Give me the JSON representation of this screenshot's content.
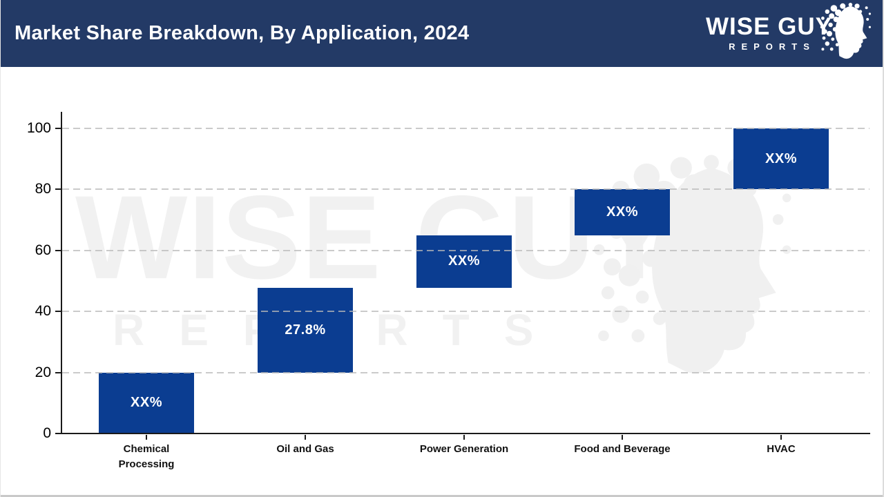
{
  "header": {
    "title": "Market Share Breakdown, By Application, 2024",
    "bg_color": "#233a66",
    "logo": {
      "line1": "WISE GUY",
      "line2": "REPORTS"
    }
  },
  "watermark": {
    "line1": "WISE GUY",
    "line2": "REPORTS"
  },
  "colors": {
    "bar": "#0b3d91",
    "header_bg": "#233a66",
    "gridline": "#bdbdbd",
    "watermark": "#f1f1f1"
  },
  "chart_data": {
    "type": "bar",
    "subtype": "floating-waterfall",
    "title": "Market Share Breakdown, By Application, 2024",
    "xlabel": "",
    "ylabel": "",
    "ylim": [
      0,
      105
    ],
    "yticks": [
      0,
      20,
      40,
      60,
      80,
      100
    ],
    "grid": "dashed-horizontal",
    "legend": "none",
    "bar_color": "#0b3d91",
    "categories": [
      {
        "name": "Chemical Processing",
        "lines": [
          "Chemical",
          "Processing"
        ],
        "start": 0,
        "end": 20,
        "label": "XX%"
      },
      {
        "name": "Oil and Gas",
        "lines": [
          "Oil and Gas"
        ],
        "start": 20,
        "end": 47.8,
        "label": "27.8%"
      },
      {
        "name": "Power Generation",
        "lines": [
          "Power Generation"
        ],
        "start": 47.8,
        "end": 65,
        "label": "XX%"
      },
      {
        "name": "Food and Beverage",
        "lines": [
          "Food and Beverage"
        ],
        "start": 65,
        "end": 80,
        "label": "XX%"
      },
      {
        "name": "HVAC",
        "lines": [
          "HVAC"
        ],
        "start": 80,
        "end": 100,
        "label": "XX%"
      }
    ]
  }
}
